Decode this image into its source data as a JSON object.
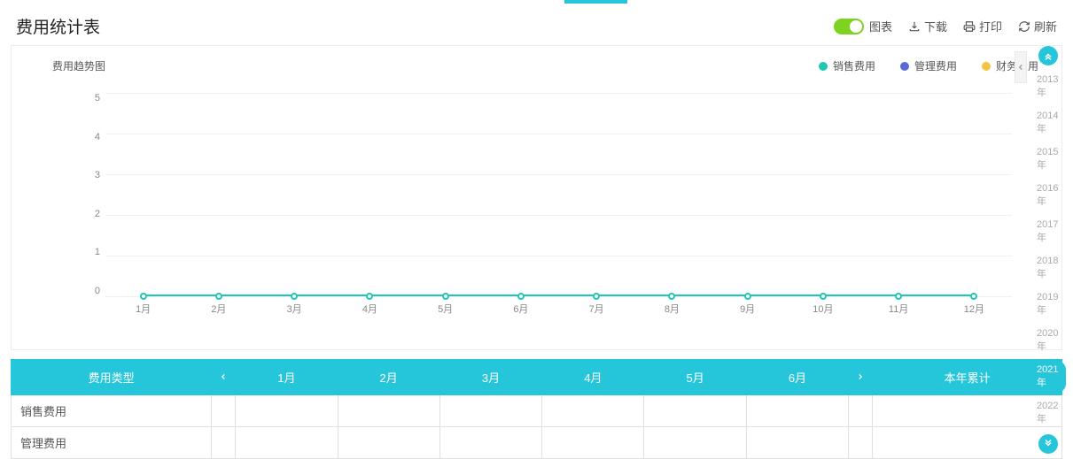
{
  "top_stripe_color": "#26c6da",
  "header": {
    "title": "费用统计表",
    "toggle_label": "图表",
    "download_label": "下载",
    "print_label": "打印",
    "refresh_label": "刷新"
  },
  "chart": {
    "title": "费用趋势图",
    "type": "line",
    "background_color": "#ffffff",
    "grid_color": "#f0f0f0",
    "ylim": [
      0,
      5
    ],
    "ytick_step": 1,
    "y_ticks": [
      "5",
      "4",
      "3",
      "2",
      "1",
      "0"
    ],
    "x_labels": [
      "1月",
      "2月",
      "3月",
      "4月",
      "5月",
      "6月",
      "7月",
      "8月",
      "9月",
      "10月",
      "11月",
      "12月"
    ],
    "series": [
      {
        "name": "销售费用",
        "color": "#1fc8b5",
        "values": [
          0,
          0,
          0,
          0,
          0,
          0,
          0,
          0,
          0,
          0,
          0,
          0
        ]
      },
      {
        "name": "管理费用",
        "color": "#5a6bd8",
        "values": [
          0,
          0,
          0,
          0,
          0,
          0,
          0,
          0,
          0,
          0,
          0,
          0
        ]
      },
      {
        "name": "财务费用",
        "color": "#f5c342",
        "values": [
          0,
          0,
          0,
          0,
          0,
          0,
          0,
          0,
          0,
          0,
          0,
          0
        ]
      }
    ],
    "legend": [
      {
        "label": "销售费用",
        "color": "#1fc8b5"
      },
      {
        "label": "管理费用",
        "color": "#5a6bd8"
      },
      {
        "label": "财务费用",
        "color": "#f5c342"
      }
    ],
    "label_fontsize": 11,
    "title_fontsize": 12,
    "line_width": 2,
    "marker_style": "circle",
    "marker_size": 8
  },
  "table": {
    "header_bg": "#26c6da",
    "header_text_color": "#ffffff",
    "row_border_color": "#e0e0e0",
    "first_col_label": "费用类型",
    "month_headers": [
      "1月",
      "2月",
      "3月",
      "4月",
      "5月",
      "6月"
    ],
    "year_total_label": "本年累计",
    "rows": [
      {
        "label": "销售费用",
        "cells": [
          "",
          "",
          "",
          "",
          "",
          ""
        ]
      },
      {
        "label": "管理费用",
        "cells": [
          "",
          "",
          "",
          "",
          "",
          ""
        ]
      }
    ]
  },
  "year_panel": {
    "years": [
      "2013年",
      "2014年",
      "2015年",
      "2016年",
      "2017年",
      "2018年",
      "2019年",
      "2020年",
      "2021年",
      "2022年"
    ],
    "active": "2021年",
    "accent": "#26c6da"
  }
}
